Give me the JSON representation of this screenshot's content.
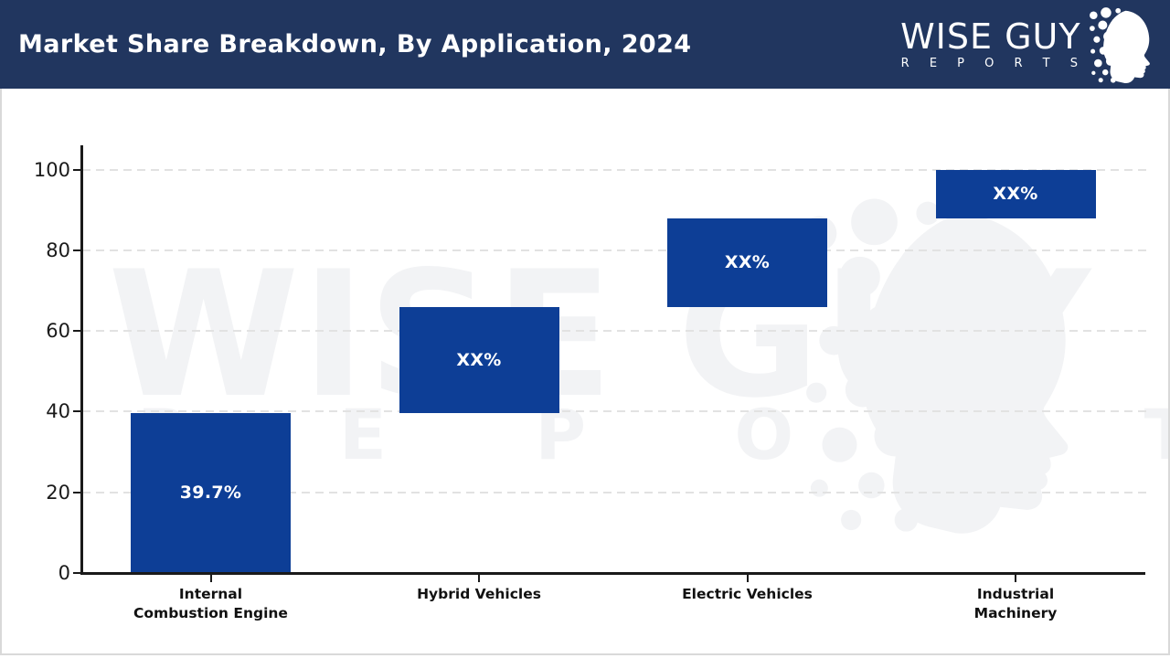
{
  "header": {
    "title": "Market Share Breakdown, By Application, 2024",
    "logo": {
      "name": "WISE GUY",
      "subtitle": "R E P O R T S"
    }
  },
  "watermark": {
    "line1": "WISE GUY",
    "line2": "R E P O R T S"
  },
  "chart_data": {
    "type": "bar",
    "subtype": "waterfall",
    "title": "Market Share Breakdown, By Application, 2024",
    "categories": [
      "Internal Combustion Engine",
      "Hybrid Vehicles",
      "Electric Vehicles",
      "Industrial Machinery"
    ],
    "category_label_lines": [
      [
        "Internal",
        "Combustion Engine"
      ],
      [
        "Hybrid Vehicles"
      ],
      [
        "Electric Vehicles"
      ],
      [
        "Industrial",
        "Machinery"
      ]
    ],
    "segments": [
      {
        "category": "Internal Combustion Engine",
        "start": 0,
        "end": 39.7,
        "label": "39.7%"
      },
      {
        "category": "Hybrid Vehicles",
        "start": 39.7,
        "end": 66,
        "label": "XX%"
      },
      {
        "category": "Electric Vehicles",
        "start": 66,
        "end": 88,
        "label": "XX%"
      },
      {
        "category": "Industrial Machinery",
        "start": 88,
        "end": 100,
        "label": "XX%"
      }
    ],
    "ylim": [
      0,
      100
    ],
    "yticks": [
      0,
      20,
      40,
      60,
      80,
      100
    ],
    "grid": "horizontal-dashed",
    "legend": "none",
    "bar_color": "#0d3e96",
    "bar_label_color": "#ffffff"
  },
  "colors": {
    "header_bg": "#21365f",
    "bar": "#0d3e96",
    "grid": "#e2e2e2",
    "axis": "#1a1a1a",
    "frame_border": "#d9d9d9",
    "watermark": "#f2f3f5"
  }
}
